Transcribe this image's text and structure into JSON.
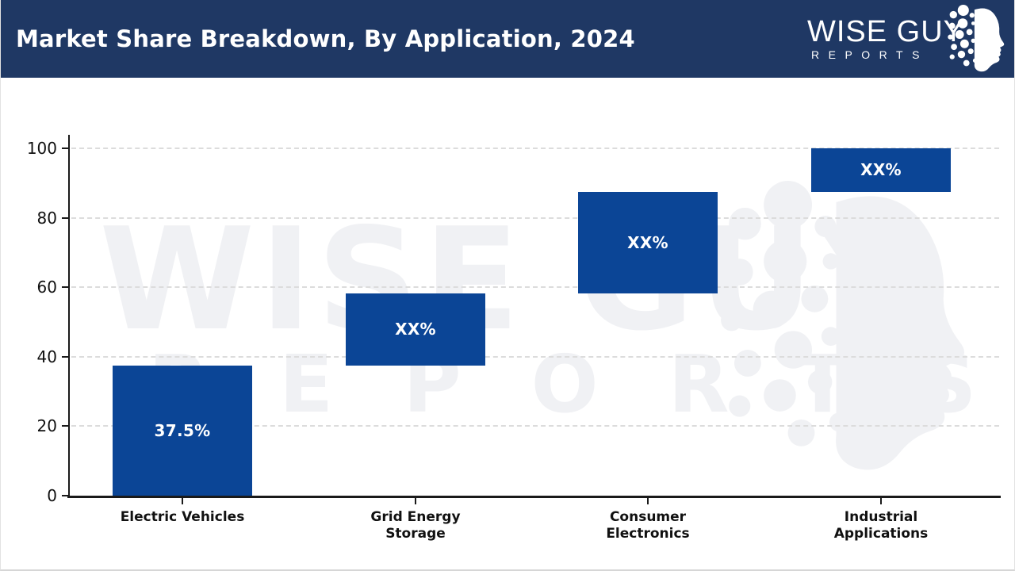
{
  "header": {
    "title": "Market Share Breakdown, By Application, 2024",
    "bg_color": "#1f3864",
    "logo": {
      "line1": "WISE GUY",
      "line2": "REPORTS"
    }
  },
  "watermark": {
    "line1": "WISE GUY",
    "line2": "REPORTS"
  },
  "chart_data": {
    "type": "bar",
    "subtype": "waterfall-floating-bars",
    "title": "Market Share Breakdown, By Application, 2024",
    "categories": [
      "Electric Vehicles",
      "Grid Energy\nStorage",
      "Consumer\nElectronics",
      "Industrial\nApplications"
    ],
    "segments": [
      [
        0,
        37.5
      ],
      [
        37.5,
        58.3
      ],
      [
        58.3,
        87.5
      ],
      [
        87.5,
        100
      ]
    ],
    "values": [
      37.5,
      20.8,
      29.2,
      12.5
    ],
    "bar_labels": [
      "37.5%",
      "XX%",
      "XX%",
      "XX%"
    ],
    "y_ticks": [
      0,
      20,
      40,
      60,
      80,
      100
    ],
    "ylim": [
      0,
      100
    ],
    "xlabel": "",
    "ylabel": "",
    "grid": "horizontal-dashed",
    "legend": "none",
    "bar_color": "#0b4596",
    "grid_color": "#dcdcdc",
    "axis_color": "#1a1a1a"
  }
}
